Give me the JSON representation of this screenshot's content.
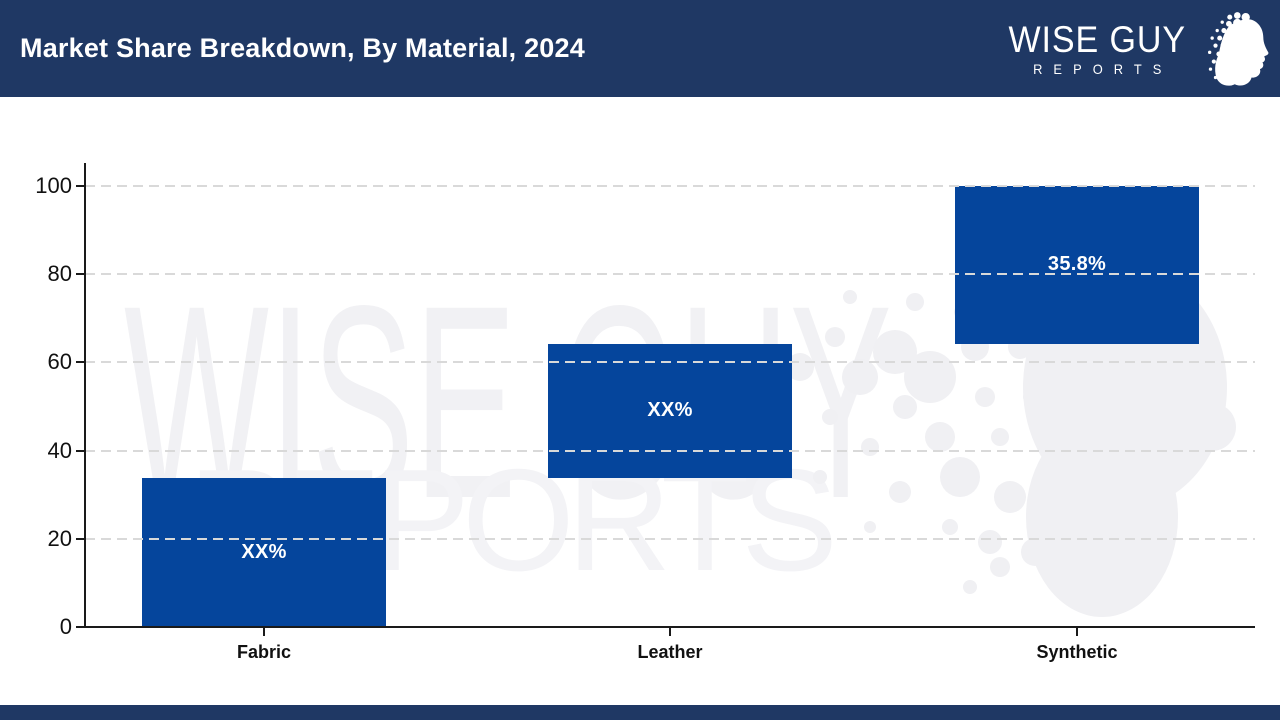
{
  "header": {
    "title": "Market Share Breakdown, By Material, 2024",
    "logo": {
      "line1": "WISE GUY",
      "line2": "REPORTS"
    }
  },
  "watermark": {
    "line1": "WISE GUY",
    "line2": "REPORTS"
  },
  "colors": {
    "header_bg": "#1f3864",
    "footer_bg": "#1f3864",
    "bar_blue": "#05459c",
    "grid_gray": "#d9d9d9",
    "axis_black": "#1a1a1a",
    "watermark_gray": "#f1f1f4"
  },
  "chart_data": {
    "type": "bar",
    "subtype": "floating-waterfall",
    "title": "Market Share Breakdown, By Material, 2024",
    "categories": [
      "Fabric",
      "Leather",
      "Synthetic"
    ],
    "segments": [
      {
        "category": "Fabric",
        "start": 0,
        "end": 33.8,
        "value_label": "XX%"
      },
      {
        "category": "Leather",
        "start": 33.8,
        "end": 64.2,
        "value_label": "XX%"
      },
      {
        "category": "Synthetic",
        "start": 64.2,
        "end": 100,
        "value_label": "35.8%"
      }
    ],
    "xlabel": "",
    "ylabel": "",
    "ylim": [
      0,
      100
    ],
    "yticks": [
      0,
      20,
      40,
      60,
      80,
      100
    ],
    "grid": {
      "horizontal": true,
      "style": "dashed",
      "color": "#d9d9d9",
      "above_bars": true
    },
    "legend": null,
    "bar_color": "#05459c",
    "bar_label_color": "#ffffff"
  }
}
